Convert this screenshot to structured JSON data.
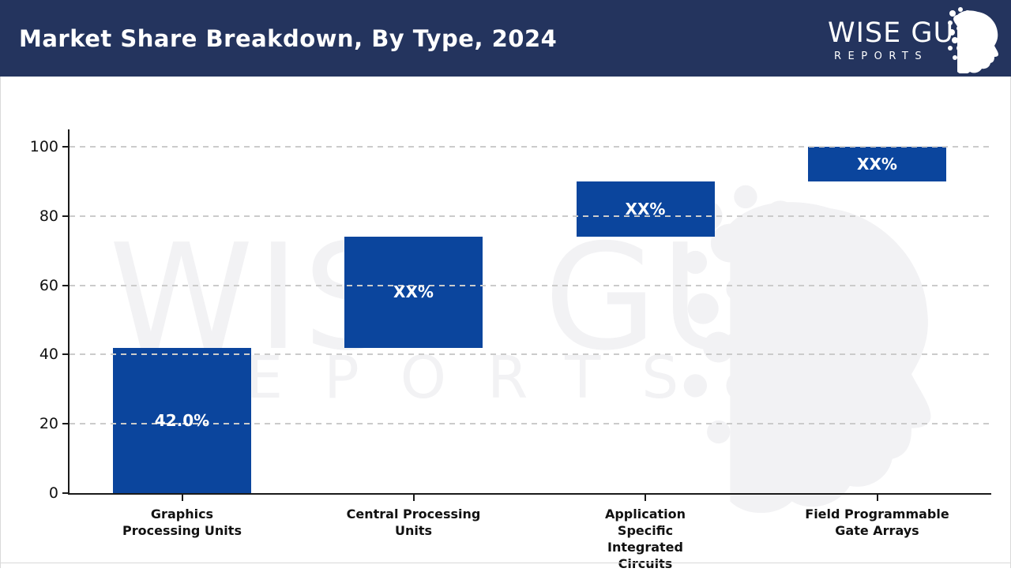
{
  "header": {
    "title": "Market Share Breakdown, By Type, 2024",
    "logo": {
      "line1": "WISE GUY",
      "line2": "REPORTS"
    }
  },
  "watermark": {
    "line1": "WISE GUY",
    "line2": "REPORTS"
  },
  "chart_data": {
    "type": "bar",
    "subtype": "waterfall",
    "title": "Market Share Breakdown, By Type, 2024",
    "categories": [
      [
        "Graphics",
        "Processing Units"
      ],
      [
        "Central Processing",
        "Units"
      ],
      [
        "Application",
        "Specific",
        "Integrated",
        "Circuits"
      ],
      [
        "Field Programmable",
        "Gate Arrays"
      ]
    ],
    "bars": [
      {
        "label": "42.0%",
        "start": 0,
        "end": 42
      },
      {
        "label": "XX%",
        "start": 42,
        "end": 74
      },
      {
        "label": "XX%",
        "start": 74,
        "end": 90
      },
      {
        "label": "XX%",
        "start": 90,
        "end": 100
      }
    ],
    "y_ticks": [
      0,
      20,
      40,
      60,
      80,
      100
    ],
    "ylim": [
      0,
      105
    ],
    "xlabel": "",
    "ylabel": "",
    "grid": true,
    "legend": false
  },
  "colors": {
    "header_bg": "#24345e",
    "bar": "#0b459d",
    "grid": "#cbcbcb",
    "axis": "#1a1a1a",
    "watermark": "#f2f2f4",
    "title_text": "#ffffff"
  }
}
